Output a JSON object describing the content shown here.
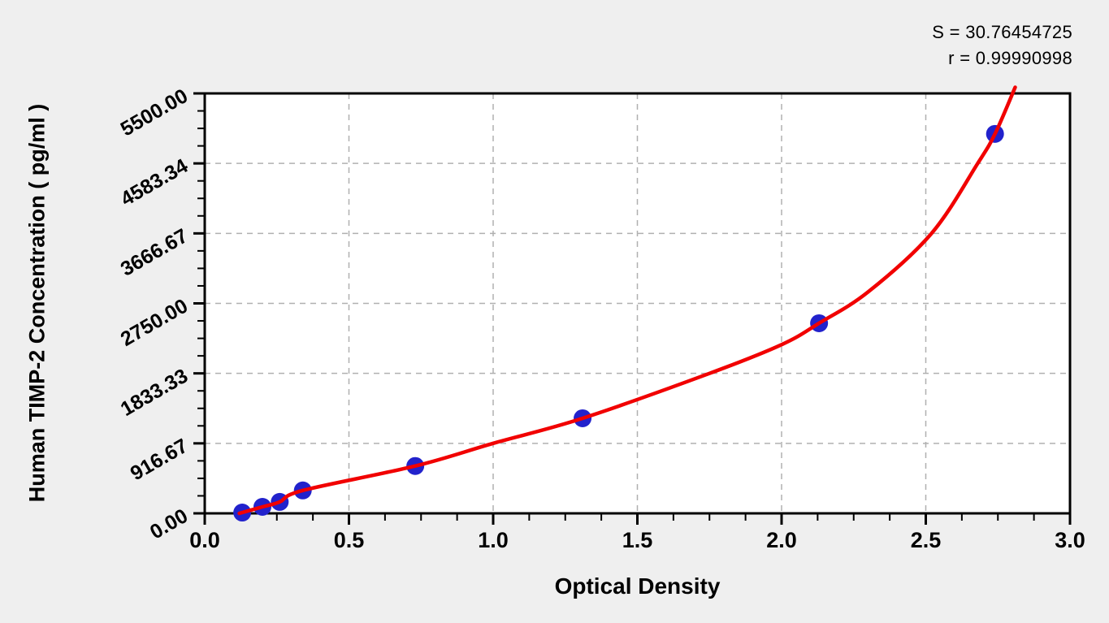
{
  "page": {
    "background_color": "#efefef"
  },
  "annotations": {
    "s_line": "S = 30.76454725",
    "r_line": "r = 0.99990998"
  },
  "chart_data": {
    "type": "scatter",
    "title": "",
    "xlabel": "Optical Density",
    "ylabel": "Human TIMP-2 Concentration （ pg/ml）",
    "ylabel_display": "Human TIMP-2 Concentration ( pg/ml )",
    "xlim": [
      0.0,
      3.0
    ],
    "ylim": [
      0.0,
      5500.0
    ],
    "x_ticks": [
      {
        "value": 0.0,
        "label": "0.0"
      },
      {
        "value": 0.5,
        "label": "0.5"
      },
      {
        "value": 1.0,
        "label": "1.0"
      },
      {
        "value": 1.5,
        "label": "1.5"
      },
      {
        "value": 2.0,
        "label": "2.0"
      },
      {
        "value": 2.5,
        "label": "2.5"
      },
      {
        "value": 3.0,
        "label": "3.0"
      }
    ],
    "y_ticks": [
      {
        "value": 0.0,
        "label": "0.00"
      },
      {
        "value": 916.67,
        "label": "916.67"
      },
      {
        "value": 1833.33,
        "label": "1833.33"
      },
      {
        "value": 2750.0,
        "label": "2750.00"
      },
      {
        "value": 3666.67,
        "label": "3666.67"
      },
      {
        "value": 4583.34,
        "label": "4583.34"
      },
      {
        "value": 5500.0,
        "label": "5500.00"
      }
    ],
    "x_minor_step": 0.125,
    "y_minor_step": 229.1675,
    "grid": {
      "show": true,
      "style": "dashed",
      "color": "#b0b0b0"
    },
    "legend": {
      "show": false
    },
    "stats": {
      "S": "30.76454725",
      "r": "0.99990998"
    },
    "series": [
      {
        "name": "standard-points",
        "type": "scatter",
        "color": "#2222cc",
        "points": [
          [
            0.13,
            10
          ],
          [
            0.2,
            85
          ],
          [
            0.26,
            150
          ],
          [
            0.34,
            300
          ],
          [
            0.73,
            620
          ],
          [
            1.31,
            1245
          ],
          [
            2.13,
            2490
          ],
          [
            2.74,
            4970
          ]
        ]
      },
      {
        "name": "fitted-curve",
        "type": "line",
        "color": "#f10000",
        "points": [
          [
            0.12,
            0
          ],
          [
            0.2,
            85
          ],
          [
            0.26,
            150
          ],
          [
            0.34,
            300
          ],
          [
            0.73,
            620
          ],
          [
            1.0,
            917
          ],
          [
            1.31,
            1245
          ],
          [
            1.75,
            1833
          ],
          [
            2.0,
            2210
          ],
          [
            2.13,
            2490
          ],
          [
            2.3,
            2900
          ],
          [
            2.52,
            3667
          ],
          [
            2.68,
            4583
          ],
          [
            2.74,
            4970
          ],
          [
            2.81,
            5580
          ]
        ]
      }
    ]
  }
}
